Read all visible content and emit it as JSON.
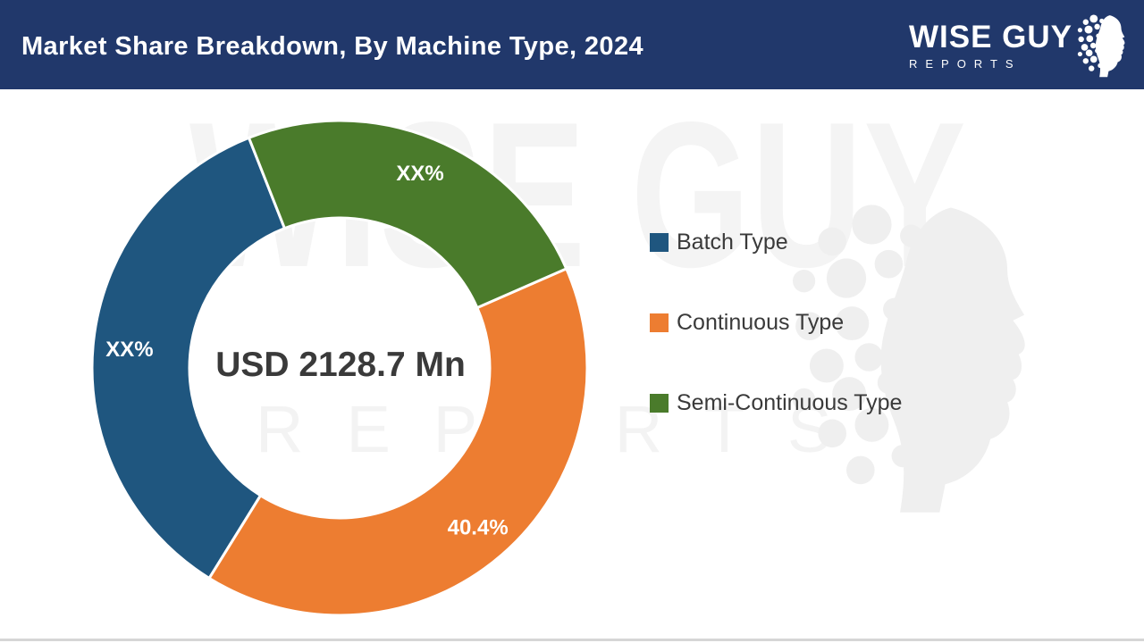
{
  "header": {
    "title": "Market Share Breakdown, By Machine Type, 2024"
  },
  "logo": {
    "name_line": "WISE GUY",
    "reports_line": "REPORTS"
  },
  "watermark": {
    "name_line": "WISE GUY",
    "reports_line": "REPORTS"
  },
  "colors": {
    "header_bg": "#21386b",
    "batch_blue": "#1f567f",
    "continuous_orange": "#ed7d31",
    "semi_continuous_green": "#4a7b2b",
    "dark_text": "#3a3a3a",
    "slice_label_white": "#ffffff"
  },
  "chart_data": {
    "type": "pie",
    "subtype": "donut",
    "title": "Market Share Breakdown, By Machine Type, 2024",
    "center_label": "USD 2128.7 Mn",
    "legend_position": "right",
    "start_angle_deg": 111.5,
    "counterclockwise": true,
    "segments": [
      {
        "name": "Batch Type",
        "color": "#1f567f",
        "share_pct_est": 35.2,
        "display_label": "XX%"
      },
      {
        "name": "Continuous Type",
        "color": "#ed7d31",
        "share_pct_est": 40.4,
        "display_label": "40.4%"
      },
      {
        "name": "Semi-Continuous Type",
        "color": "#4a7b2b",
        "share_pct_est": 24.4,
        "display_label": "XX%"
      }
    ]
  }
}
